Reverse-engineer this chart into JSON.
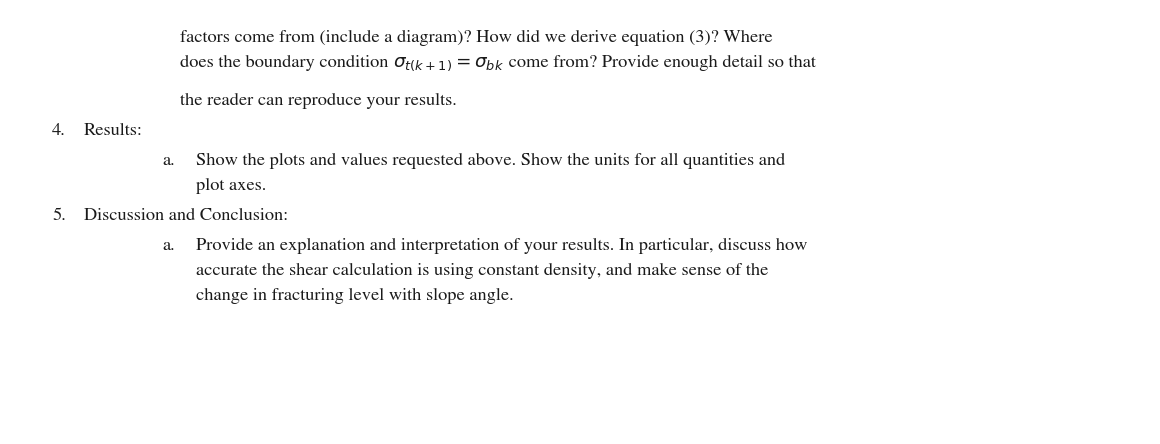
{
  "background_color": "#ffffff",
  "text_color": "#1a1a1a",
  "figsize": [
    11.6,
    4.44
  ],
  "dpi": 100,
  "font_size": 13.2,
  "font_family": "STIXGeneral",
  "lines": [
    {
      "type": "plain",
      "xpx": 180,
      "ypx": 30,
      "text": "factors come from (include a diagram)? How did we derive equation (3)? Where"
    },
    {
      "type": "mathline",
      "xpx": 180,
      "ypx": 55,
      "pre": "does the boundary condition ",
      "math": "$\\sigma_{t(k+1)} = \\sigma_{bk}$",
      "post": " come from? Provide enough detail so that"
    },
    {
      "type": "plain",
      "xpx": 180,
      "ypx": 93,
      "text": "the reader can reproduce your results."
    },
    {
      "type": "plain",
      "xpx": 52,
      "ypx": 123,
      "text": "4."
    },
    {
      "type": "plain",
      "xpx": 84,
      "ypx": 123,
      "text": "Results:"
    },
    {
      "type": "plain",
      "xpx": 162,
      "ypx": 153,
      "text": "a."
    },
    {
      "type": "plain",
      "xpx": 196,
      "ypx": 153,
      "text": "Show the plots and values requested above. Show the units for all quantities and"
    },
    {
      "type": "plain",
      "xpx": 196,
      "ypx": 178,
      "text": "plot axes."
    },
    {
      "type": "plain",
      "xpx": 52,
      "ypx": 208,
      "text": "5."
    },
    {
      "type": "plain",
      "xpx": 84,
      "ypx": 208,
      "text": "Discussion and Conclusion:"
    },
    {
      "type": "plain",
      "xpx": 162,
      "ypx": 238,
      "text": "a."
    },
    {
      "type": "plain",
      "xpx": 196,
      "ypx": 238,
      "text": "Provide an explanation and interpretation of your results. In particular, discuss how"
    },
    {
      "type": "plain",
      "xpx": 196,
      "ypx": 263,
      "text": "accurate the shear calculation is using constant density, and make sense of the"
    },
    {
      "type": "plain",
      "xpx": 196,
      "ypx": 288,
      "text": "change in fracturing level with slope angle."
    }
  ]
}
